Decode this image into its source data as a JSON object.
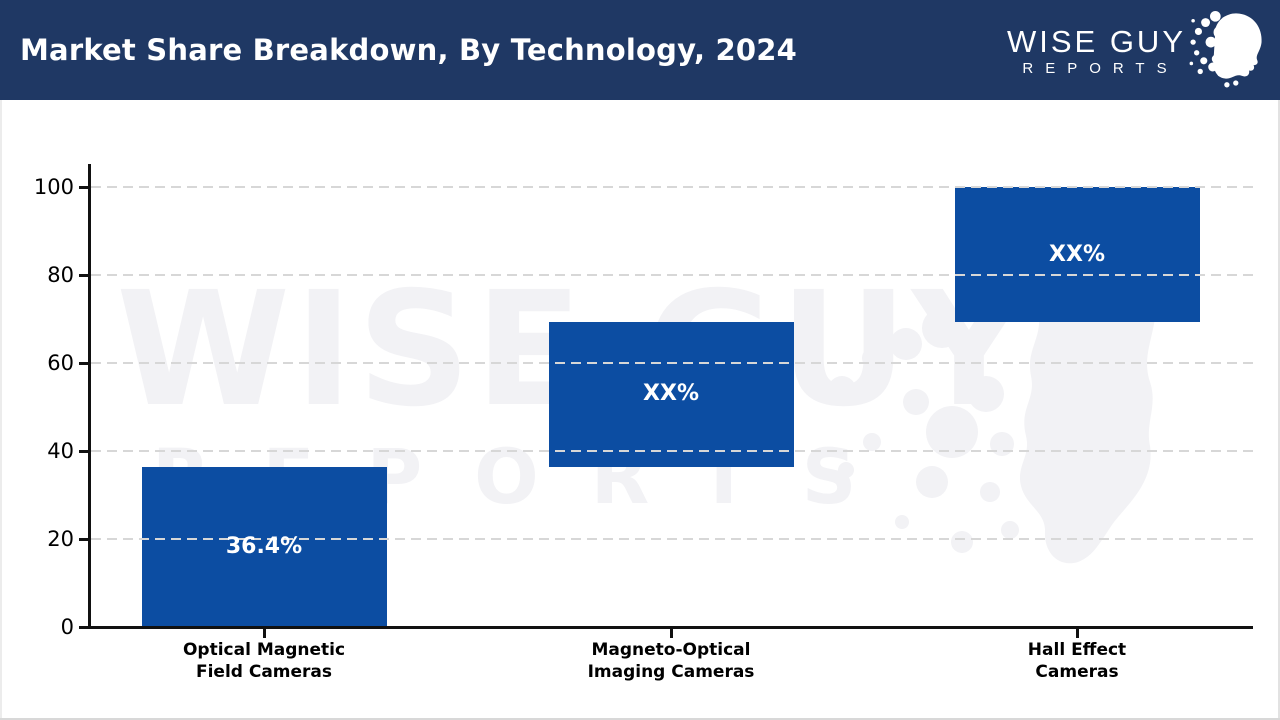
{
  "header": {
    "title": "Market Share Breakdown, By Technology, 2024",
    "bg_color": "#1f3864",
    "logo": {
      "line1": "WISE GUY",
      "line2": "REPORTS"
    }
  },
  "watermark": {
    "line1": "WISE GUY",
    "line2": "REPORTS"
  },
  "chart_data": {
    "type": "bar",
    "subtype": "waterfall-stepped",
    "title": "Market Share Breakdown, By Technology, 2024",
    "categories": [
      "Optical Magnetic Field Cameras",
      "Magneto-Optical Imaging Cameras",
      "Hall Effect Cameras"
    ],
    "category_lines": [
      [
        "Optical Magnetic",
        "Field Cameras"
      ],
      [
        "Magneto-Optical",
        "Imaging Cameras"
      ],
      [
        "Hall Effect",
        "Cameras"
      ]
    ],
    "segments": [
      {
        "category": "Optical Magnetic Field Cameras",
        "start": 0,
        "end": 36.4,
        "height": 36.4,
        "value_label": "36.4%"
      },
      {
        "category": "Magneto-Optical Imaging Cameras",
        "start": 36.4,
        "end": 69.3,
        "height": 32.9,
        "value_label": "XX%"
      },
      {
        "category": "Hall Effect Cameras",
        "start": 69.3,
        "end": 100,
        "height": 30.7,
        "value_label": "XX%"
      }
    ],
    "values": [
      36.4,
      32.9,
      30.7
    ],
    "ylim": [
      0,
      100
    ],
    "yticks": [
      0,
      20,
      40,
      60,
      80,
      100
    ],
    "xlabel": "",
    "ylabel": "",
    "grid": "horizontal-dashed",
    "legend": "none",
    "bar_color": "#0c4da2",
    "value_label_color": "#ffffff",
    "axis_color": "#111111",
    "gridline_color": "#d7d7d7"
  }
}
